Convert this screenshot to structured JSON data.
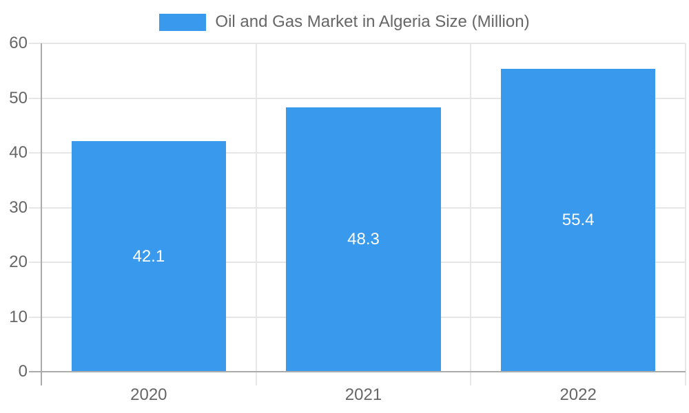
{
  "chart_data": {
    "type": "bar",
    "title": "Oil and Gas Market in Algeria Size (Million)",
    "categories": [
      "2020",
      "2021",
      "2022"
    ],
    "values": [
      42.1,
      48.3,
      55.4
    ],
    "value_labels": [
      "42.1",
      "48.3",
      "55.4"
    ],
    "series": [
      {
        "name": "Oil and Gas Market in Algeria Size (Million)",
        "values": [
          42.1,
          48.3,
          55.4
        ]
      }
    ],
    "xlabel": "",
    "ylabel": "",
    "ylim": [
      0,
      60
    ],
    "yticks": [
      0,
      10,
      20,
      30,
      40,
      50,
      60
    ],
    "grid": true,
    "legend_position": "top",
    "colors": {
      "bar": "#3999EC",
      "bar_label_text": "#FFFFFF",
      "axis_text": "#666666",
      "grid_line": "#E6E6E6",
      "axis_line": "#ABABAB",
      "background": "#FFFFFF"
    }
  }
}
